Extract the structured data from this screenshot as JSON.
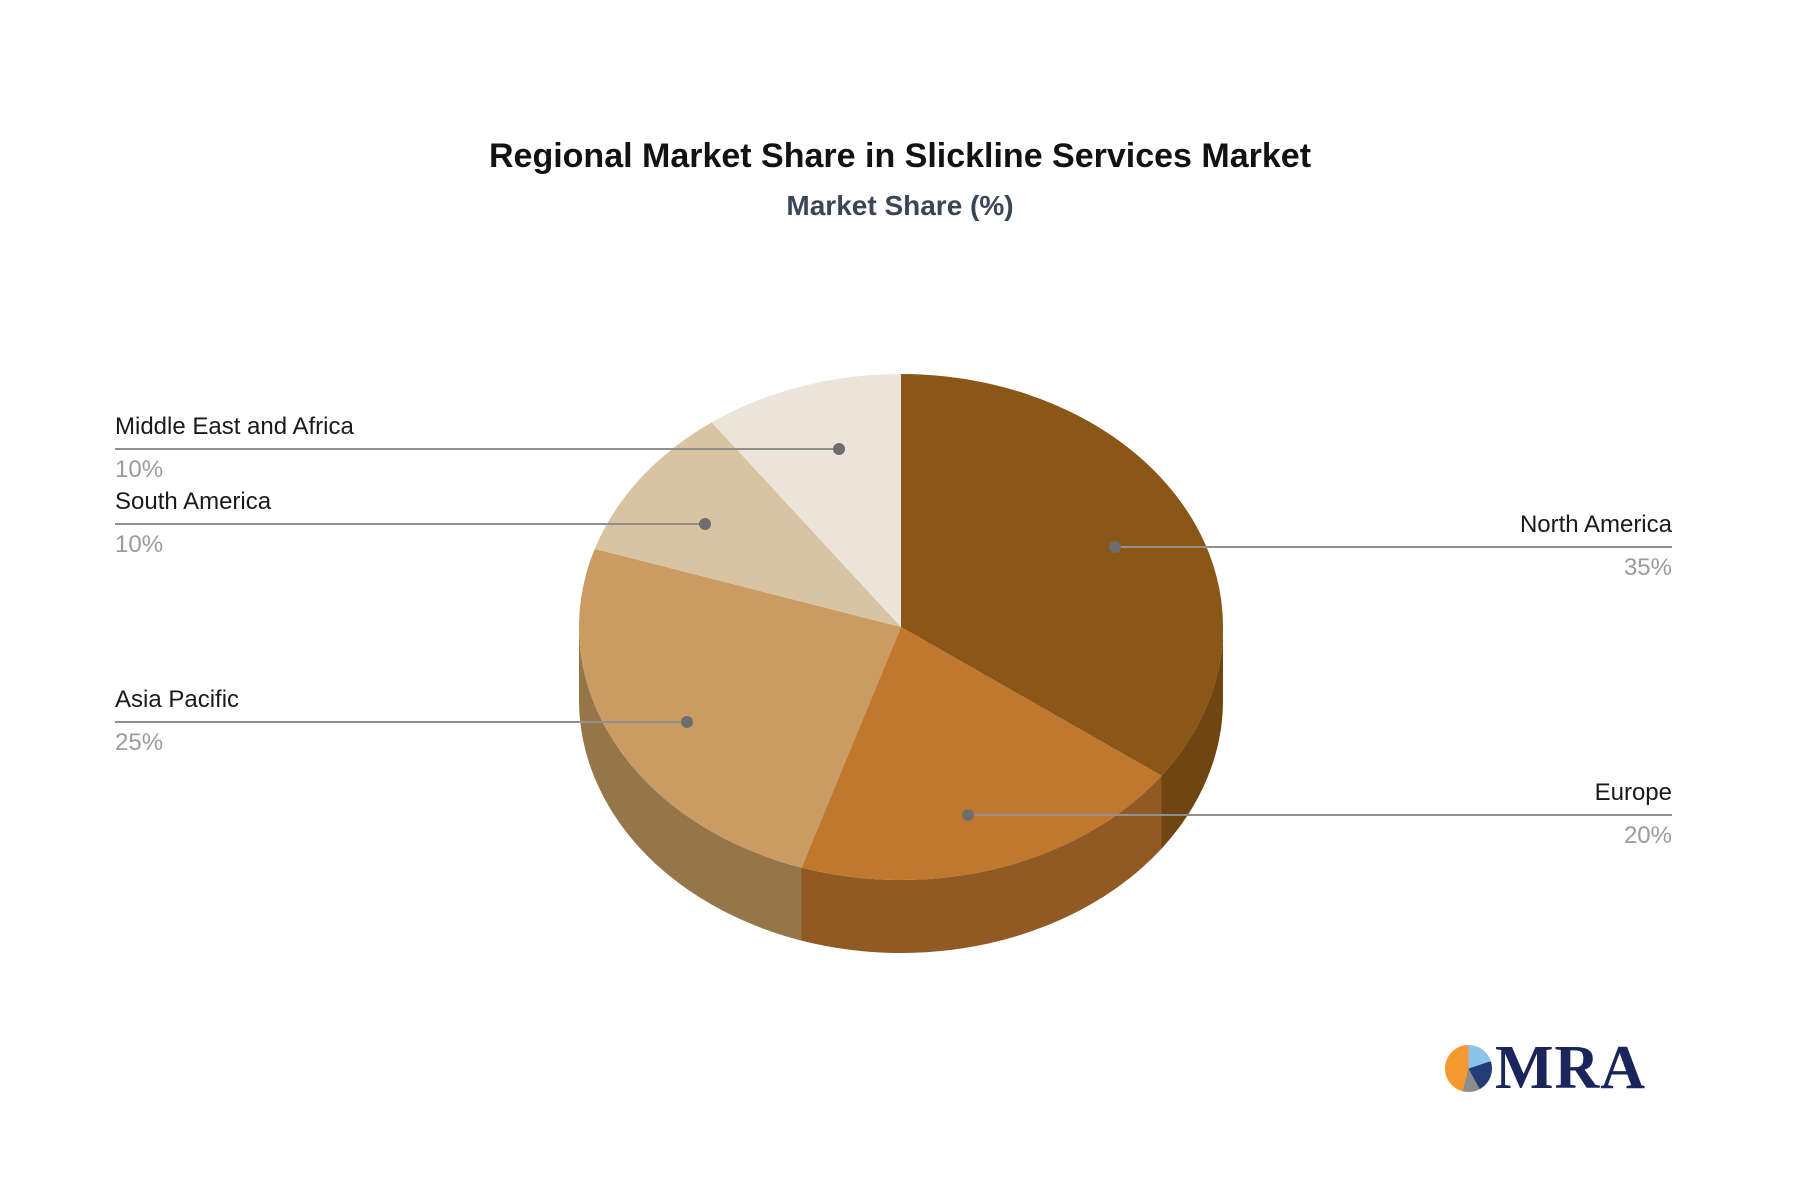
{
  "page": {
    "background": "#FFFFFF"
  },
  "chart_data": {
    "type": "pie",
    "style": "3d-pie",
    "title": "Regional Market Share in Slickline Services Market",
    "subtitle": "Market Share (%)",
    "unit": "%",
    "direction": "clockwise",
    "start_angle_deg": 0,
    "legend_position": "callout-labels",
    "labels": [
      "North America",
      "Europe",
      "Asia Pacific",
      "South America",
      "Middle East and Africa"
    ],
    "values": [
      35,
      20,
      25,
      10,
      10
    ],
    "value_labels": [
      "35%",
      "20%",
      "25%",
      "10%",
      "10%"
    ],
    "colors": [
      "#8A5716",
      "#C0772E",
      "#CA9B62",
      "#D8C4A3",
      "#EDE4D9"
    ],
    "side_colors": [
      "#6F4512",
      "#8F5A24",
      "#967549",
      "#B09A77",
      "#C9BCAC"
    ],
    "title_color": "#121212",
    "subtitle_color": "#3A4656",
    "label_color": "#1A1A1A",
    "value_label_color": "#9B9B9B",
    "leader_line_color": "#909090",
    "leader_dot_color": "#6E6E6E"
  },
  "logo": {
    "text": "MRA",
    "text_color": "#1B255C",
    "pie_icon_colors": {
      "light_blue": "#8CC5EC",
      "navy": "#223C78",
      "gray": "#8C8C8C",
      "orange": "#F5992E"
    }
  }
}
